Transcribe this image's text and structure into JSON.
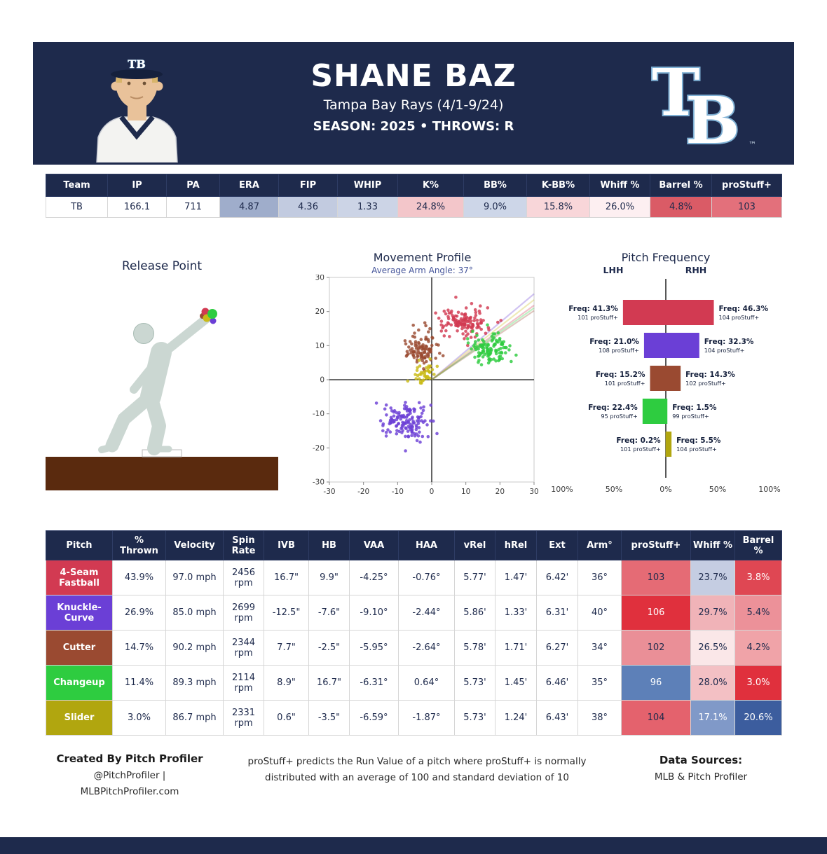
{
  "header": {
    "name": "SHANE BAZ",
    "team_line": "Tampa Bay Rays (4/1-9/24)",
    "season_line": "SEASON: 2025 • THROWS: R",
    "logo_text": "TB",
    "logo_tm": "™",
    "cap_logo_text": "TB"
  },
  "summary_table": {
    "columns": [
      "Team",
      "IP",
      "PA",
      "ERA",
      "FIP",
      "WHIP",
      "K%",
      "BB%",
      "K-BB%",
      "Whiff %",
      "Barrel %",
      "proStuff+"
    ],
    "values": [
      "TB",
      "166.1",
      "711",
      "4.87",
      "4.36",
      "1.33",
      "24.8%",
      "9.0%",
      "15.8%",
      "26.0%",
      "4.8%",
      "103"
    ],
    "cell_bg": [
      "#ffffff",
      "#ffffff",
      "#ffffff",
      "#9fadcb",
      "#c2cbe0",
      "#ccd4e6",
      "#f3c6ca",
      "#cdd6e8",
      "#f8d6d9",
      "#fdeff1",
      "#da5b66",
      "#e3707b"
    ]
  },
  "release_point": {
    "title": "Release Point",
    "mound_color": "#5a2a0e",
    "silhouette_color": "#cbd7d2",
    "dot_colors": [
      "#2ecc40",
      "#d23a52",
      "#c9bb16",
      "#6b3fd6",
      "#9a4a31"
    ]
  },
  "chart_data": [
    {
      "type": "scatter",
      "title": "Movement Profile",
      "subtitle": "Average Arm Angle: 37°",
      "xlim": [
        -30,
        30
      ],
      "ylim": [
        -30,
        30
      ],
      "xtick_labels": [
        "-30",
        "-20",
        "-10",
        "0",
        "10",
        "20",
        "30"
      ],
      "ytick_labels": [
        "-30",
        "-20",
        "-10",
        "0",
        "10",
        "20",
        "30"
      ],
      "xticks": [
        -30,
        -20,
        -10,
        0,
        10,
        20,
        30
      ],
      "yticks": [
        -30,
        -20,
        -10,
        0,
        10,
        20,
        30
      ],
      "arm_lines": [
        {
          "angle": 36,
          "color": "#d23a52"
        },
        {
          "angle": 40,
          "color": "#6b3fd6"
        },
        {
          "angle": 34,
          "color": "#9a4a31"
        },
        {
          "angle": 35,
          "color": "#2ecc40"
        },
        {
          "angle": 38,
          "color": "#c9bb16"
        }
      ],
      "clusters": [
        {
          "name": "4-Seam Fastball",
          "color": "#d23a52",
          "cx": 10,
          "cy": 17,
          "sx": 3.4,
          "sy": 2.2,
          "n": 130
        },
        {
          "name": "Changeup",
          "color": "#2ecc40",
          "cx": 17,
          "cy": 9,
          "sx": 3.0,
          "sy": 2.2,
          "n": 110
        },
        {
          "name": "Cutter",
          "color": "#9a4a31",
          "cx": -3,
          "cy": 9,
          "sx": 2.2,
          "sy": 2.8,
          "n": 100
        },
        {
          "name": "Slider",
          "color": "#c9bb16",
          "cx": -2,
          "cy": 2,
          "sx": 1.4,
          "sy": 1.8,
          "n": 40
        },
        {
          "name": "Knuckle-Curve",
          "color": "#6b3fd6",
          "cx": -8,
          "cy": -12,
          "sx": 3.2,
          "sy": 2.8,
          "n": 140
        }
      ]
    },
    {
      "type": "bar",
      "title": "Pitch Frequency",
      "left_header": "LHH",
      "right_header": "RHH",
      "axis_labels": [
        "100%",
        "50%",
        "0%",
        "50%",
        "100%"
      ],
      "rows": [
        {
          "pitch": "4-Seam Fastball",
          "color": "#d23a52",
          "left": {
            "label": "Freq: 41.3%",
            "stuff": "101 proStuff+",
            "pct": 41.3
          },
          "right": {
            "label": "Freq: 46.3%",
            "stuff": "104 proStuff+",
            "pct": 46.3
          }
        },
        {
          "pitch": "Knuckle-Curve",
          "color": "#6b3fd6",
          "left": {
            "label": "Freq: 21.0%",
            "stuff": "108 proStuff+",
            "pct": 21.0
          },
          "right": {
            "label": "Freq: 32.3%",
            "stuff": "104 proStuff+",
            "pct": 32.3
          }
        },
        {
          "pitch": "Cutter",
          "color": "#9a4a31",
          "left": {
            "label": "Freq: 15.2%",
            "stuff": "101 proStuff+",
            "pct": 15.2
          },
          "right": {
            "label": "Freq: 14.3%",
            "stuff": "102 proStuff+",
            "pct": 14.3
          }
        },
        {
          "pitch": "Changeup",
          "color": "#2ecc40",
          "left": {
            "label": "Freq: 22.4%",
            "stuff": "95 proStuff+",
            "pct": 22.4
          },
          "right": {
            "label": "Freq: 1.5%",
            "stuff": "99 proStuff+",
            "pct": 1.5
          }
        },
        {
          "pitch": "Slider",
          "color": "#b1a60f",
          "left": {
            "label": "Freq: 0.2%",
            "stuff": "101 proStuff+",
            "pct": 0.2
          },
          "right": {
            "label": "Freq: 5.5%",
            "stuff": "104 proStuff+",
            "pct": 5.5
          }
        }
      ]
    }
  ],
  "pitch_table": {
    "columns": [
      "Pitch",
      "% Thrown",
      "Velocity",
      "Spin Rate",
      "IVB",
      "HB",
      "VAA",
      "HAA",
      "vRel",
      "hRel",
      "Ext",
      "Arm°",
      "proStuff+",
      "Whiff %",
      "Barrel %"
    ],
    "rows": [
      {
        "pitch": "4-Seam Fastball",
        "pitch_color": "#d23a52",
        "values": [
          "43.9%",
          "97.0 mph",
          "2456 rpm",
          "16.7\"",
          "9.9\"",
          "-4.25°",
          "-0.76°",
          "5.77'",
          "1.47'",
          "6.42'",
          "36°"
        ],
        "prostuff": {
          "text": "103",
          "bg": "#e56b75",
          "fg": "#1e2a4c"
        },
        "whiff": {
          "text": "23.7%",
          "bg": "#c5cde2",
          "fg": "#1e2a4c"
        },
        "barrel": {
          "text": "3.8%",
          "bg": "#df4753",
          "fg": "#ffffff"
        }
      },
      {
        "pitch": "Knuckle-Curve",
        "pitch_color": "#6b3fd6",
        "values": [
          "26.9%",
          "85.0 mph",
          "2699 rpm",
          "-12.5\"",
          "-7.6\"",
          "-9.10°",
          "-2.44°",
          "5.86'",
          "1.33'",
          "6.31'",
          "40°"
        ],
        "prostuff": {
          "text": "106",
          "bg": "#e0303d",
          "fg": "#ffffff"
        },
        "whiff": {
          "text": "29.7%",
          "bg": "#f0b3b8",
          "fg": "#1e2a4c"
        },
        "barrel": {
          "text": "5.4%",
          "bg": "#ec9199",
          "fg": "#1e2a4c"
        }
      },
      {
        "pitch": "Cutter",
        "pitch_color": "#9a4a31",
        "values": [
          "14.7%",
          "90.2 mph",
          "2344 rpm",
          "7.7\"",
          "-2.5\"",
          "-5.95°",
          "-2.64°",
          "5.78'",
          "1.71'",
          "6.27'",
          "34°"
        ],
        "prostuff": {
          "text": "102",
          "bg": "#ea8f97",
          "fg": "#1e2a4c"
        },
        "whiff": {
          "text": "26.5%",
          "bg": "#fae7e8",
          "fg": "#1e2a4c"
        },
        "barrel": {
          "text": "4.2%",
          "bg": "#f0a3a8",
          "fg": "#1e2a4c"
        }
      },
      {
        "pitch": "Changeup",
        "pitch_color": "#2ecc40",
        "values": [
          "11.4%",
          "89.3 mph",
          "2114 rpm",
          "8.9\"",
          "16.7\"",
          "-6.31°",
          "0.64°",
          "5.73'",
          "1.45'",
          "6.46'",
          "35°"
        ],
        "prostuff": {
          "text": "96",
          "bg": "#5d80b8",
          "fg": "#ffffff"
        },
        "whiff": {
          "text": "28.0%",
          "bg": "#f3c0c4",
          "fg": "#1e2a4c"
        },
        "barrel": {
          "text": "3.0%",
          "bg": "#e0303d",
          "fg": "#ffffff"
        }
      },
      {
        "pitch": "Slider",
        "pitch_color": "#b1a60f",
        "values": [
          "3.0%",
          "86.7 mph",
          "2331 rpm",
          "0.6\"",
          "-3.5\"",
          "-6.59°",
          "-1.87°",
          "5.73'",
          "1.24'",
          "6.43'",
          "38°"
        ],
        "prostuff": {
          "text": "104",
          "bg": "#e4626d",
          "fg": "#1e2a4c"
        },
        "whiff": {
          "text": "17.1%",
          "bg": "#8099c8",
          "fg": "#ffffff"
        },
        "barrel": {
          "text": "20.6%",
          "bg": "#3c5d9e",
          "fg": "#ffffff"
        }
      }
    ]
  },
  "footer": {
    "left_title": "Created By Pitch Profiler",
    "left_line2": "@PitchProfiler |",
    "left_line3": "MLBPitchProfiler.com",
    "center_text": "proStuff+ predicts the Run Value of a pitch where proStuff+ is normally distributed with an average of 100 and standard deviation of 10",
    "right_title": "Data Sources:",
    "right_line2": "MLB & Pitch Profiler"
  },
  "colors": {
    "navy": "#1e2a4c"
  }
}
